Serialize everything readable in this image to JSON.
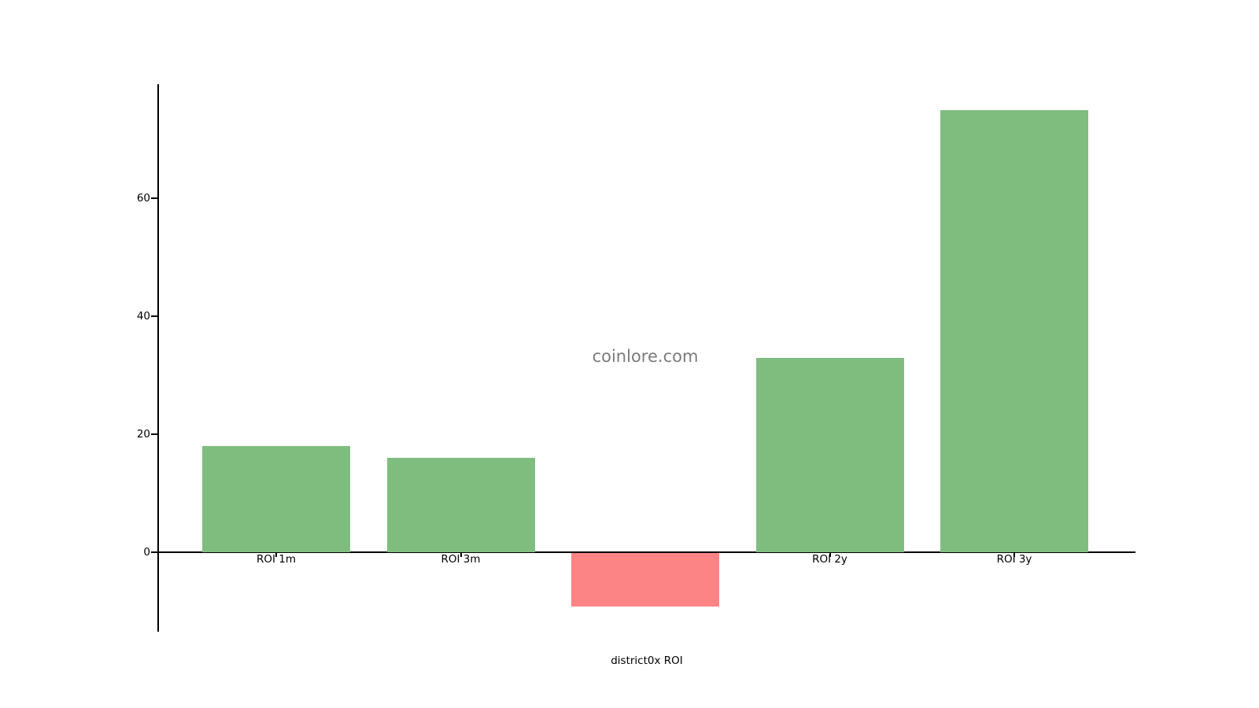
{
  "watermark": {
    "text": "coinlore.com",
    "color": "#7b7b7b"
  },
  "chart_data": {
    "type": "bar",
    "title": "district0x ROI",
    "title_position": "bottom",
    "categories": [
      "ROI 1m",
      "ROI 3m",
      "",
      "ROI 2y",
      "ROI 3y"
    ],
    "values": [
      18,
      16,
      -9,
      33,
      75
    ],
    "series": [
      {
        "name": "district0x ROI",
        "values": [
          18,
          16,
          -9,
          33,
          75
        ]
      }
    ],
    "positive_color": "#7fbd7f",
    "negative_color": "#fc8484",
    "axis_color": "#000000",
    "text_color": "#000000",
    "yticks": [
      0,
      20,
      40,
      60
    ],
    "ylim": [
      -13.3,
      79.3
    ],
    "xlabel": "",
    "ylabel": "",
    "grid": false,
    "legend": null,
    "annotations": [
      "coinlore.com"
    ]
  }
}
